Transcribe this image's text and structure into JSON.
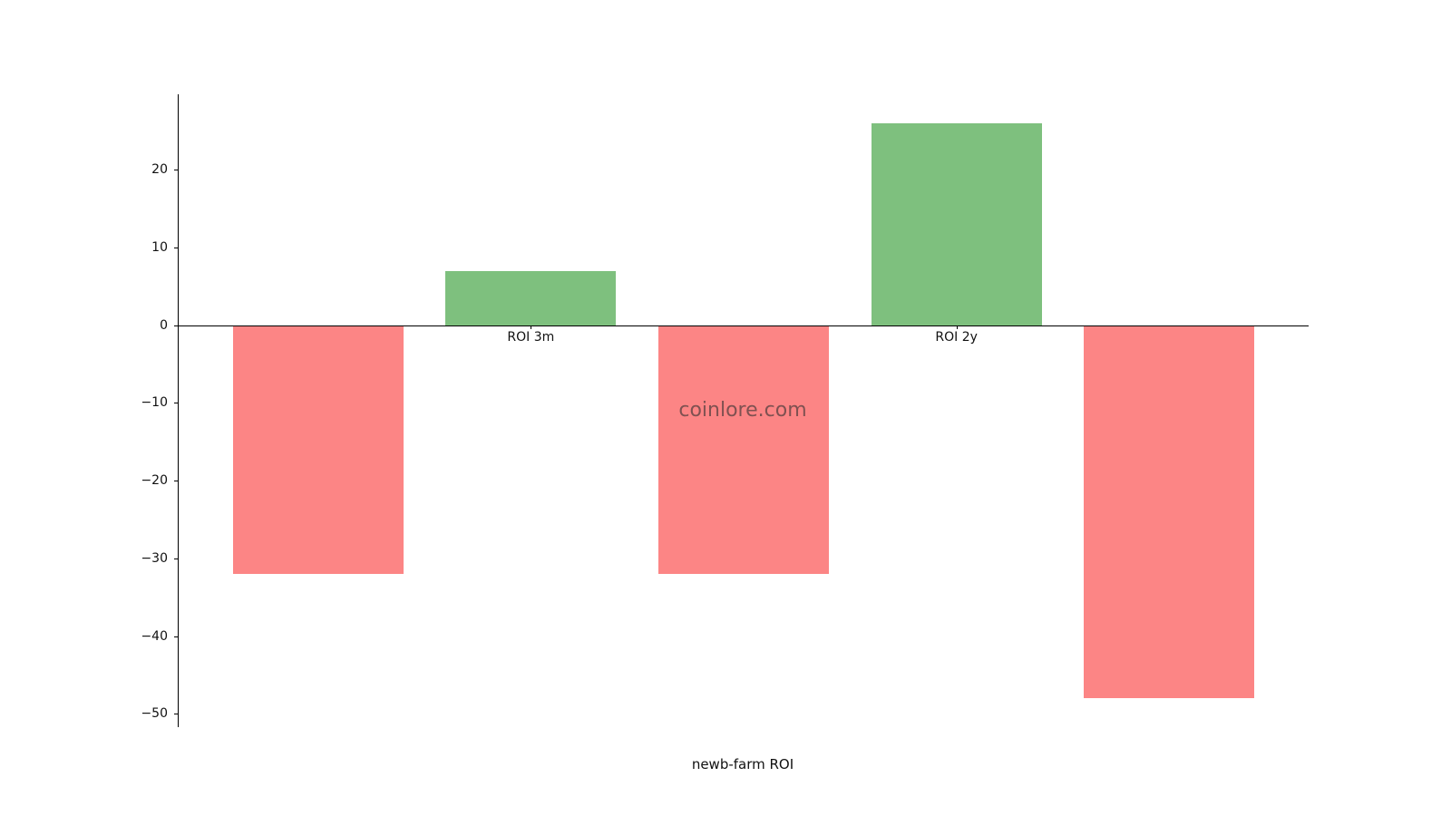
{
  "page": {
    "background": "#ffffff"
  },
  "watermark": {
    "text": "coinlore.com",
    "color": "rgba(50,50,50,0.62)"
  },
  "chart_data": {
    "type": "bar",
    "title": "",
    "xlabel": "newb-farm ROI",
    "ylabel": "",
    "categories": [
      "",
      "ROI 3m",
      "",
      "ROI 2y",
      ""
    ],
    "values": [
      -32,
      7,
      -32,
      26,
      -48
    ],
    "colors": {
      "positive_bar": "#7ec07e",
      "negative_bar": "#fc8585",
      "axis": "#000000",
      "tick_label": "#111111"
    },
    "yticks": [
      20,
      10,
      0,
      -10,
      -20,
      -30,
      -40,
      -50
    ],
    "ytick_labels": [
      "20",
      "10",
      "0",
      "−10",
      "−20",
      "−30",
      "−40",
      "−50"
    ],
    "ylim": [
      -51.7,
      29.7
    ],
    "xlim": [
      -0.655,
      4.655
    ],
    "bar_width_fraction": 0.8,
    "grid": false,
    "legend": "none"
  }
}
